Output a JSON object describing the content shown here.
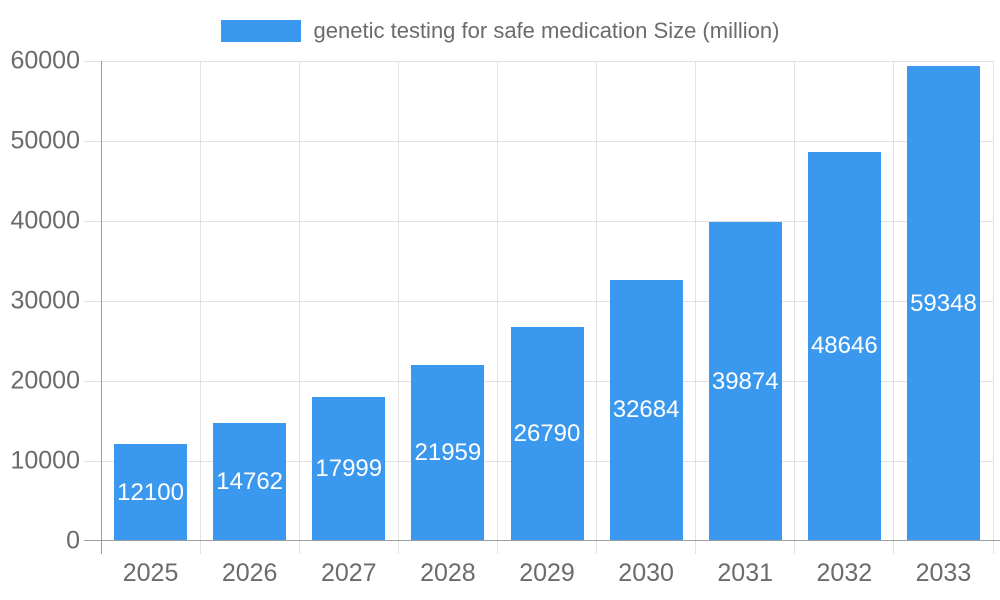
{
  "chart_data": {
    "type": "bar",
    "legend": "genetic testing for safe medication Size (million)",
    "legend_position": "top-center",
    "categories": [
      "2025",
      "2026",
      "2027",
      "2028",
      "2029",
      "2030",
      "2031",
      "2032",
      "2033"
    ],
    "series": [
      {
        "name": "genetic testing for safe medication Size (million)",
        "values": [
          12100,
          14762,
          17999,
          21959,
          26790,
          32684,
          39874,
          48646,
          59348
        ]
      }
    ],
    "bar_value_labels": [
      "12100",
      "14762",
      "17999",
      "21959",
      "26790",
      "32684",
      "39874",
      "48646",
      "59348"
    ],
    "xlabel": "",
    "ylabel": "",
    "ylim": [
      0,
      60000
    ],
    "ytick_interval": 10000,
    "yticks": [
      "0",
      "10000",
      "20000",
      "30000",
      "40000",
      "50000",
      "60000"
    ],
    "grid": true,
    "colors": {
      "bar": "#3A99EE",
      "grid": "#E2E2E2",
      "axis": "#9D9D9D",
      "tick_label_text": "#6B6B6B",
      "bar_label_text": "#FFFFFF",
      "background": "#FFFFFF"
    }
  }
}
